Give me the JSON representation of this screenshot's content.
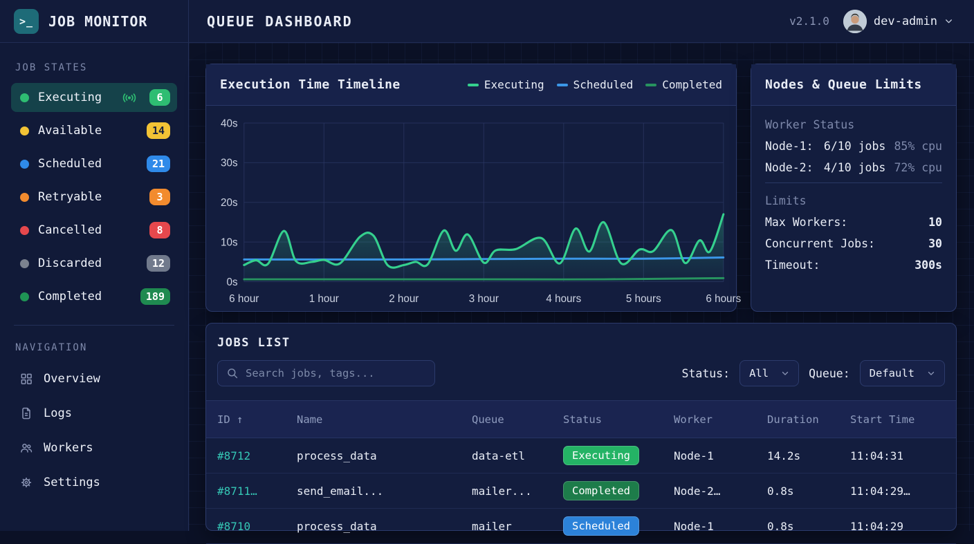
{
  "topbar": {
    "brand": "JOB MONITOR",
    "logo_glyph": ">_",
    "page_title": "QUEUE DASHBOARD",
    "version": "v2.1.0",
    "user": "dev-admin"
  },
  "sidebar": {
    "states_header": "JOB STATES",
    "states": [
      {
        "label": "Executing",
        "count": "6",
        "dot": "#2ebd72",
        "badge_bg": "#2ebd72",
        "badge_fg": "#ffffff",
        "active": true,
        "live": true
      },
      {
        "label": "Available",
        "count": "14",
        "dot": "#f2c335",
        "badge_bg": "#f2c335",
        "badge_fg": "#17203d"
      },
      {
        "label": "Scheduled",
        "count": "21",
        "dot": "#2f8ae9",
        "badge_bg": "#2f8ae9",
        "badge_fg": "#ffffff"
      },
      {
        "label": "Retryable",
        "count": "3",
        "dot": "#f28b2e",
        "badge_bg": "#f28b2e",
        "badge_fg": "#ffffff"
      },
      {
        "label": "Cancelled",
        "count": "8",
        "dot": "#e5484d",
        "badge_bg": "#e5484d",
        "badge_fg": "#ffffff"
      },
      {
        "label": "Discarded",
        "count": "12",
        "dot": "#7b828f",
        "badge_bg": "#717a8c",
        "badge_fg": "#ffffff"
      },
      {
        "label": "Completed",
        "count": "189",
        "dot": "#1f9455",
        "badge_bg": "#1f8a50",
        "badge_fg": "#ffffff"
      }
    ],
    "nav_header": "NAVIGATION",
    "nav": [
      {
        "label": "Overview",
        "icon": "grid-icon"
      },
      {
        "label": "Logs",
        "icon": "document-icon"
      },
      {
        "label": "Workers",
        "icon": "users-icon"
      },
      {
        "label": "Settings",
        "icon": "gear-icon"
      }
    ]
  },
  "timeline_card": {
    "title": "Execution Time Timeline"
  },
  "chart_data": {
    "type": "line",
    "title": "Execution Time Timeline",
    "x_ticks": [
      "6 hour",
      "1 hour",
      "2 hour",
      "3 hour",
      "4 hours",
      "5 hours",
      "6 hours"
    ],
    "y_ticks": [
      "0s",
      "10s",
      "20s",
      "30s",
      "40s"
    ],
    "xlim": [
      0,
      6
    ],
    "ylim": [
      0,
      40
    ],
    "grid": true,
    "legend_position": "top-right",
    "series": [
      {
        "name": "Executing",
        "color": "#35d08e",
        "fill": true,
        "points": [
          [
            0,
            4.2
          ],
          [
            0.15,
            5.4
          ],
          [
            0.3,
            4.5
          ],
          [
            0.5,
            12.8
          ],
          [
            0.65,
            5.2
          ],
          [
            0.85,
            5.0
          ],
          [
            1.0,
            5.5
          ],
          [
            1.2,
            4.6
          ],
          [
            1.45,
            11.3
          ],
          [
            1.62,
            11.6
          ],
          [
            1.8,
            4.1
          ],
          [
            2.0,
            4.2
          ],
          [
            2.15,
            5.0
          ],
          [
            2.3,
            4.4
          ],
          [
            2.5,
            12.9
          ],
          [
            2.65,
            7.8
          ],
          [
            2.8,
            11.9
          ],
          [
            3.0,
            4.8
          ],
          [
            3.15,
            7.9
          ],
          [
            3.4,
            8.2
          ],
          [
            3.72,
            11.0
          ],
          [
            3.95,
            4.6
          ],
          [
            4.15,
            13.4
          ],
          [
            4.32,
            7.6
          ],
          [
            4.5,
            15.0
          ],
          [
            4.72,
            4.6
          ],
          [
            4.95,
            8.1
          ],
          [
            5.12,
            7.7
          ],
          [
            5.35,
            13.0
          ],
          [
            5.52,
            4.7
          ],
          [
            5.7,
            10.4
          ],
          [
            5.83,
            7.6
          ],
          [
            6,
            17.0
          ]
        ]
      },
      {
        "name": "Scheduled",
        "color": "#3b97e8",
        "points": [
          [
            0,
            5.6
          ],
          [
            1,
            5.6
          ],
          [
            2,
            5.6
          ],
          [
            3,
            5.7
          ],
          [
            4,
            5.8
          ],
          [
            5,
            5.8
          ],
          [
            6,
            6.1
          ]
        ]
      },
      {
        "name": "Completed",
        "color": "#27935f",
        "points": [
          [
            0,
            0.6
          ],
          [
            1.5,
            0.6
          ],
          [
            3,
            0.6
          ],
          [
            4.5,
            0.6
          ],
          [
            6,
            0.9
          ]
        ]
      }
    ]
  },
  "nodes_card": {
    "title": "Nodes & Queue Limits",
    "worker_status_label": "Worker Status",
    "nodes": [
      {
        "name": "Node-1:",
        "jobs": "6/10 jobs",
        "cpu": "85% cpu"
      },
      {
        "name": "Node-2:",
        "jobs": "4/10 jobs",
        "cpu": "72% cpu"
      }
    ],
    "limits_label": "Limits",
    "limits": [
      {
        "label": "Max Workers:",
        "value": "10"
      },
      {
        "label": "Concurrent Jobs:",
        "value": "30"
      },
      {
        "label": "Timeout:",
        "value": "300s"
      }
    ]
  },
  "jobs_card": {
    "title": "JOBS LIST",
    "search_placeholder": "Search jobs, tags...",
    "status_filter_label": "Status:",
    "status_filter_value": "All",
    "queue_filter_label": "Queue:",
    "queue_filter_value": "Default",
    "columns": [
      "ID ↑",
      "Name",
      "Queue",
      "Status",
      "Worker",
      "Duration",
      "Start Time"
    ],
    "rows": [
      {
        "id": "#8712",
        "name": "process_data",
        "queue": "data-etl",
        "status": "Executing",
        "status_bg": "#24b365",
        "worker": "Node-1",
        "duration": "14.2s",
        "start": "11:04:31"
      },
      {
        "id": "#8711…",
        "name": "send_email...",
        "queue": "mailer...",
        "status": "Completed",
        "status_bg": "#1d7c4a",
        "worker": "Node-2…",
        "duration": "0.8s",
        "start": "11:04:29…"
      },
      {
        "id": "#8710",
        "name": "process_data",
        "queue": "mailer",
        "status": "Scheduled",
        "status_bg": "#2c82d9",
        "worker": "Node-1",
        "duration": "0.8s",
        "start": "11:04:29"
      }
    ]
  }
}
